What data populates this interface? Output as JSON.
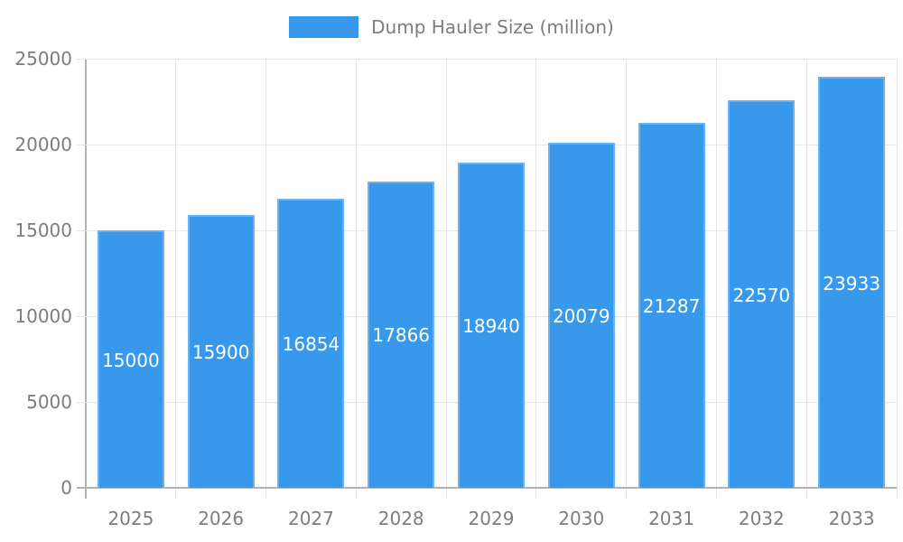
{
  "legend": {
    "label": "Dump Hauler Size (million)"
  },
  "chart_data": {
    "type": "bar",
    "title": "Dump Hauler Size (million)",
    "series_name": "Dump Hauler Size (million)",
    "categories": [
      "2025",
      "2026",
      "2027",
      "2028",
      "2029",
      "2030",
      "2031",
      "2032",
      "2033"
    ],
    "values": [
      15000,
      15900,
      16854,
      17866,
      18940,
      20079,
      21287,
      22570,
      23933
    ],
    "value_labels": [
      "15000",
      "15900",
      "16854",
      "17866",
      "18940",
      "20079",
      "21287",
      "22570",
      "23933"
    ],
    "xlabel": "",
    "ylabel": "",
    "ylim": [
      0,
      25000
    ],
    "yticks": [
      0,
      5000,
      10000,
      15000,
      20000,
      25000
    ],
    "grid": true,
    "legend_position": "top",
    "colors": {
      "bar": "#3899EC",
      "axis_text": "#7d7d7d",
      "gridline": "#E6E6E6",
      "zero_line": "#B3B3B3",
      "value_label": "#FFFFFF",
      "background": "#FFFFFF"
    }
  }
}
